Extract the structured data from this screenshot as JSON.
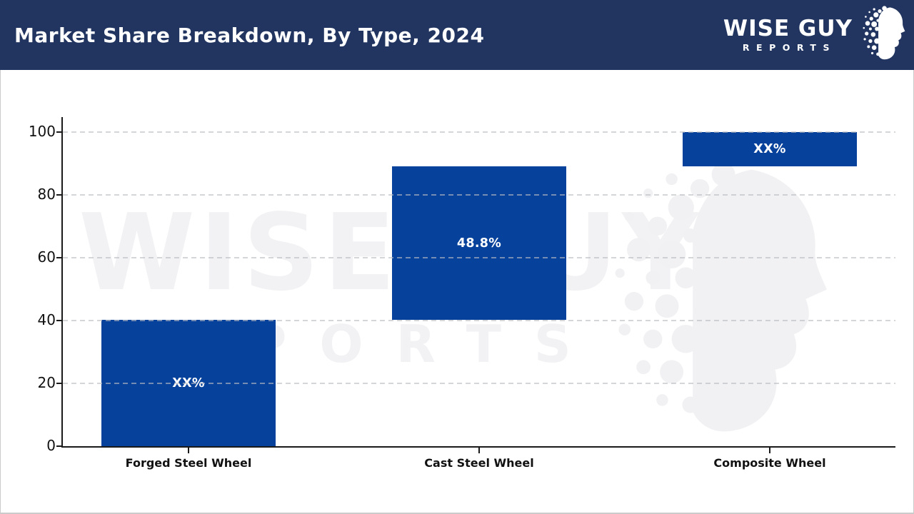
{
  "header": {
    "title": "Market Share Breakdown, By Type, 2024",
    "logo": {
      "line1": "WISE GUY",
      "line2": "REPORTS"
    }
  },
  "watermark": {
    "line1": "WISE GUY",
    "line2": "REPORTS"
  },
  "colors": {
    "header_bg": "#213560",
    "title": "#ffffff",
    "bar": "#06419c",
    "bar_label": "#ffffff",
    "axis": "#1a1a1a",
    "grid": "#d9d9d9",
    "watermark": "#f2f2f4",
    "page_border": "#cbcbcb"
  },
  "chart_data": {
    "type": "bar",
    "subtype": "waterfall",
    "title": "Market Share Breakdown, By Type, 2024",
    "categories": [
      "Forged Steel Wheel",
      "Cast Steel Wheel",
      "Composite Wheel"
    ],
    "segments": [
      {
        "category": "Forged Steel Wheel",
        "from": 0,
        "to": 40.2,
        "label": "XX%"
      },
      {
        "category": "Cast Steel Wheel",
        "from": 40.2,
        "to": 89.0,
        "label": "48.8%"
      },
      {
        "category": "Composite Wheel",
        "from": 89.0,
        "to": 100,
        "label": "XX%"
      }
    ],
    "values": [
      40.2,
      48.8,
      11.0
    ],
    "labels": [
      "XX%",
      "48.8%",
      "XX%"
    ],
    "xlabel": "",
    "ylabel": "",
    "ylim": [
      0,
      104.8
    ],
    "yticks": [
      0,
      20,
      40,
      60,
      80,
      100
    ],
    "grid": "horizontal-dashed",
    "legend": "none"
  }
}
